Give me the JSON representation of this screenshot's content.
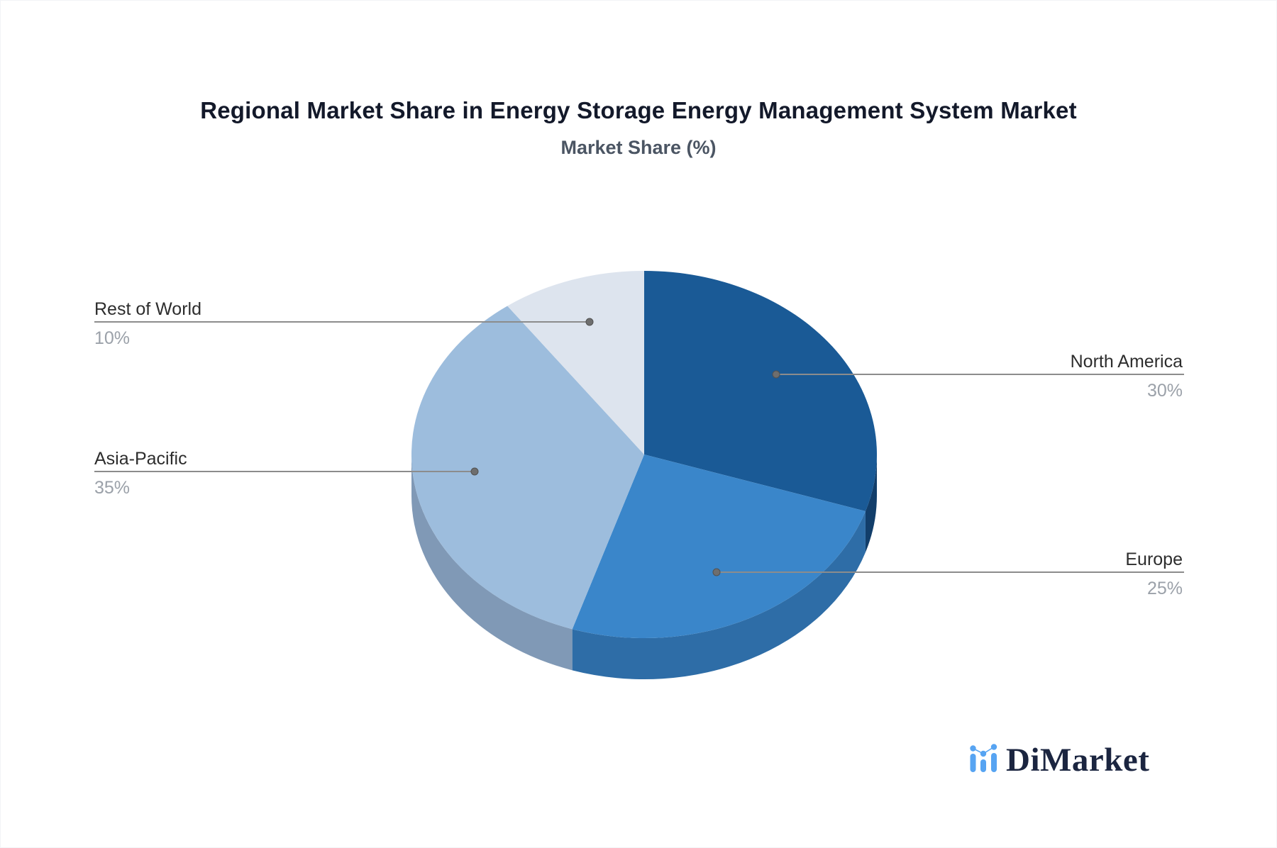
{
  "header": {
    "title": "Regional Market Share in Energy Storage Energy Management System Market",
    "subtitle": "Market Share (%)"
  },
  "chart_data": {
    "type": "pie",
    "style": "3d",
    "title": "Regional Market Share in Energy Storage Energy Management System Market",
    "subtitle": "Market Share (%)",
    "unit": "%",
    "start_angle_deg": 0,
    "direction": "clockwise",
    "legend": "none",
    "label_style": "callout-lines-with-dots",
    "slices": [
      {
        "label": "North America",
        "value": 30,
        "display_value": "30%",
        "color": "#1a5a96",
        "side_color": "#123e6a"
      },
      {
        "label": "Europe",
        "value": 25,
        "display_value": "25%",
        "color": "#3a86ca",
        "side_color": "#2e6da7"
      },
      {
        "label": "Asia-Pacific",
        "value": 35,
        "display_value": "35%",
        "color": "#9dbddd",
        "side_color": "#8099b6"
      },
      {
        "label": "Rest of World",
        "value": 10,
        "display_value": "10%",
        "color": "#dde4ee",
        "side_color": "#b7c4d6"
      }
    ]
  },
  "callout_style": {
    "line_color": "#8c8c8c",
    "dot_color": "#6e6e6e",
    "label_color": "#2d2d2d",
    "value_color": "#9ba1a9"
  },
  "branding": {
    "logo_text": "DiMarket",
    "logo_icon": "bar-line-chart-icon",
    "logo_icon_color": "#57a4f2",
    "logo_text_color": "#1b2540"
  }
}
